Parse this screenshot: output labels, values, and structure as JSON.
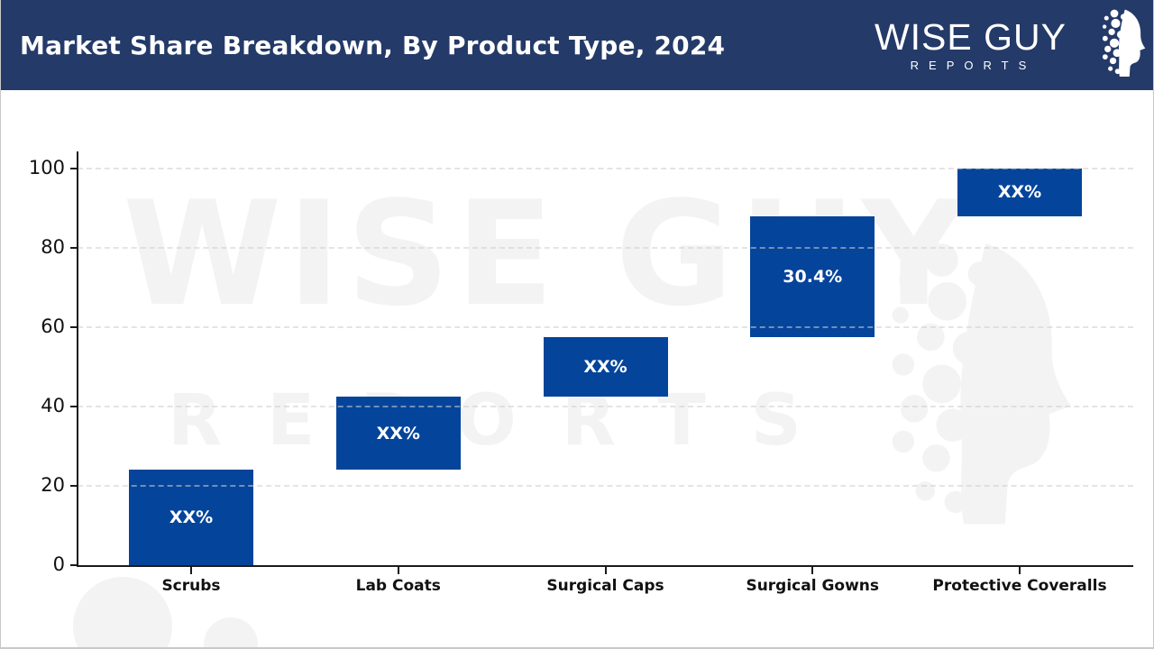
{
  "header": {
    "title": "Market Share Breakdown, By Product Type, 2024",
    "logo": {
      "line1": "WISE GUY",
      "line2": "REPORTS"
    }
  },
  "watermark": {
    "line1": "WISE GUY",
    "line2": "REPORTS"
  },
  "colors": {
    "header_bg": "#243a68",
    "bar": "#05449b",
    "bar_label": "#ffffff",
    "axis": "#1a1a1a",
    "gridline": "#e2e2e2",
    "watermark": "#f3f3f3"
  },
  "chart_data": {
    "type": "bar",
    "subtype": "waterfall",
    "title": "Market Share Breakdown, By Product Type, 2024",
    "categories": [
      "Scrubs",
      "Lab Coats",
      "Surgical Caps",
      "Surgical Gowns",
      "Protective Coveralls"
    ],
    "values": [
      24,
      18.4,
      15.2,
      30.4,
      12
    ],
    "segments": [
      {
        "start": 0,
        "end": 24
      },
      {
        "start": 24,
        "end": 42.4
      },
      {
        "start": 42.4,
        "end": 57.6
      },
      {
        "start": 57.6,
        "end": 88
      },
      {
        "start": 88,
        "end": 100
      }
    ],
    "bar_labels": [
      "XX%",
      "XX%",
      "XX%",
      "30.4%",
      "XX%"
    ],
    "xlabel": "",
    "ylabel": "",
    "ylim": [
      0,
      100
    ],
    "yticks": [
      0,
      20,
      40,
      60,
      80,
      100
    ],
    "grid": "horizontal-dashed",
    "legend": "none"
  }
}
